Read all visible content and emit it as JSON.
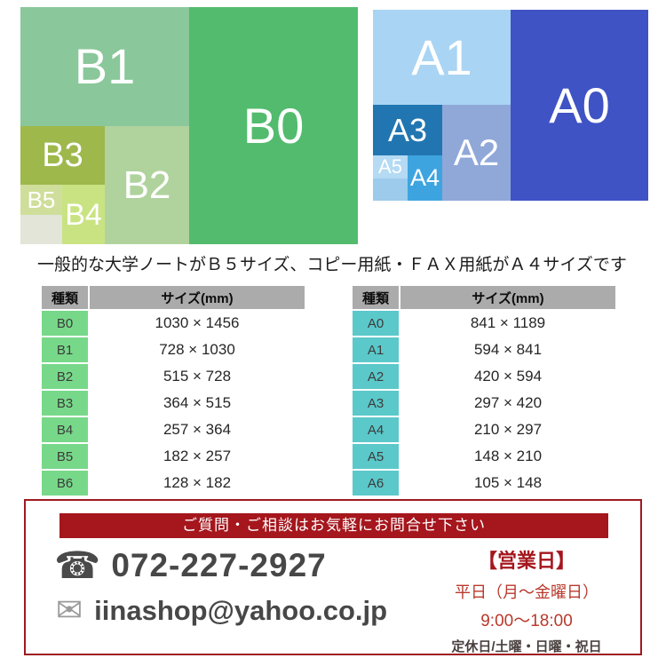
{
  "caption": "一般的な大学ノートがＢ５サイズ、コピー用紙・ＦＡＸ用紙がＡ４サイズです",
  "diagrams": {
    "b": {
      "cells": [
        {
          "label": "B0",
          "color": "#53bb6e"
        },
        {
          "label": "B1",
          "color": "#8ac79a"
        },
        {
          "label": "B2",
          "color": "#b0d39e"
        },
        {
          "label": "B3",
          "color": "#9eb84c"
        },
        {
          "label": "B4",
          "color": "#c9e383"
        },
        {
          "label": "B5",
          "color": "#cfdf9b"
        },
        {
          "label": "",
          "color": "#e2e5d8"
        }
      ]
    },
    "a": {
      "cells": [
        {
          "label": "A0",
          "color": "#3f53c5"
        },
        {
          "label": "A1",
          "color": "#aad4f3"
        },
        {
          "label": "A2",
          "color": "#8fa8d8"
        },
        {
          "label": "A3",
          "color": "#2176b2"
        },
        {
          "label": "A4",
          "color": "#3ea4e0"
        },
        {
          "label": "A5",
          "color": "#b4daf4"
        },
        {
          "label": "",
          "color": "#9ccbec"
        }
      ]
    }
  },
  "tables": {
    "headers": {
      "type": "種類",
      "size": "サイズ(mm)"
    },
    "header_bg": "#ababab",
    "b": {
      "cell_color": "#77d889",
      "rows": [
        {
          "type": "B0",
          "size": "1030 × 1456"
        },
        {
          "type": "B1",
          "size": "728 × 1030"
        },
        {
          "type": "B2",
          "size": "515 × 728"
        },
        {
          "type": "B3",
          "size": "364 × 515"
        },
        {
          "type": "B4",
          "size": "257 × 364"
        },
        {
          "type": "B5",
          "size": "182 × 257"
        },
        {
          "type": "B6",
          "size": "128 × 182"
        }
      ]
    },
    "a": {
      "cell_color": "#5bc8ca",
      "rows": [
        {
          "type": "A0",
          "size": "841 × 1189"
        },
        {
          "type": "A1",
          "size": "594 × 841"
        },
        {
          "type": "A2",
          "size": "420 × 594"
        },
        {
          "type": "A3",
          "size": "297 × 420"
        },
        {
          "type": "A4",
          "size": "210 × 297"
        },
        {
          "type": "A5",
          "size": "148 × 210"
        },
        {
          "type": "A6",
          "size": "105 × 148"
        }
      ]
    }
  },
  "contact": {
    "banner": "ご質問・ご相談はお気軽にお問合せ下さい",
    "banner_bg": "#a5161d",
    "accent_red": "#a5161d",
    "crimson": "#b9392c",
    "phone_icon_glyph": "☎",
    "phone": "072-227-2927",
    "email_icon_glyph": "✉",
    "email": "iinashop@yahoo.co.jp",
    "hours_title": "【営業日】",
    "hours_days": "平日（月～金曜日）",
    "hours_time": "9:00～18:00",
    "closed": "定休日/土曜・日曜・祝日"
  }
}
